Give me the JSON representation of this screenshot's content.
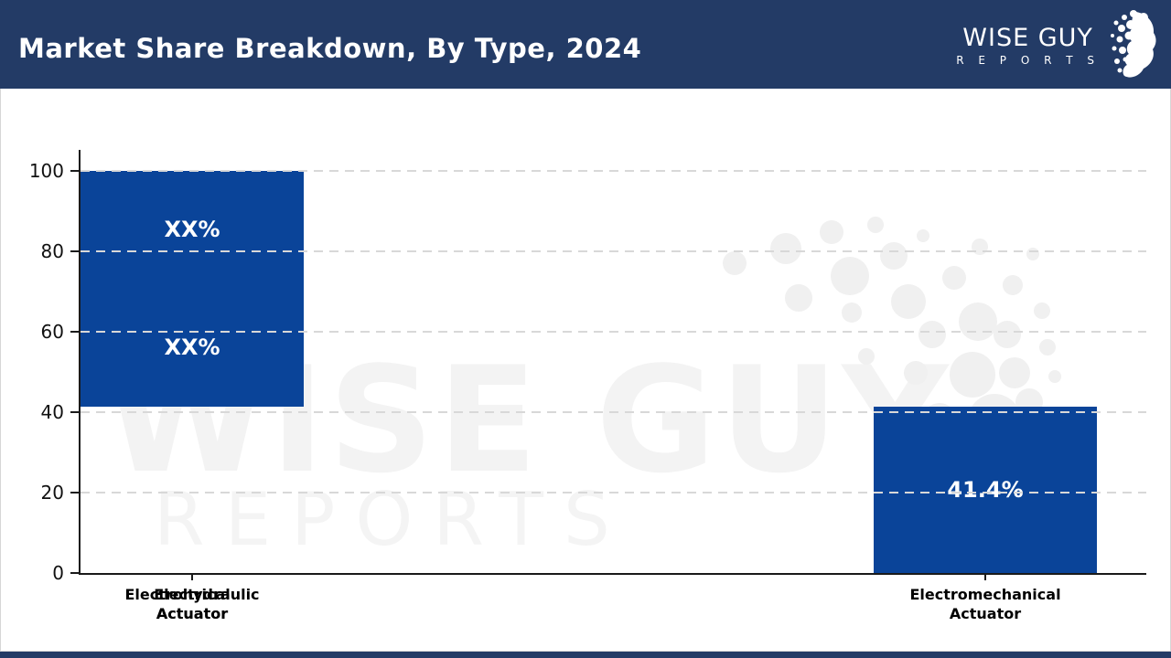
{
  "header": {
    "title": "Market Share Breakdown, By Type, 2024",
    "logo": {
      "line1": "WISE GUY",
      "line2": "R E P O R T S"
    }
  },
  "watermark": {
    "line1": "WISE GUY",
    "line2": "REPORTS"
  },
  "chart_data": {
    "type": "bar",
    "variant": "stacked-waterfall-segments",
    "title": "Market Share Breakdown, By Type, 2024",
    "categories": [
      "Electromechanical Actuator",
      "Electrohydraulic Actuator",
      "Electrical Actuator"
    ],
    "bars": [
      {
        "category": "Electromechanical Actuator",
        "cat_line1": "Electromechanical",
        "cat_line2": "Actuator",
        "label": "41.4%",
        "start": 0,
        "end": 41.4
      },
      {
        "category": "Electrohydraulic Actuator",
        "cat_line1": "Electrohydraulic",
        "cat_line2": "Actuator",
        "label": "XX%",
        "start": 41.4,
        "end": 70.9
      },
      {
        "category": "Electrical Actuator",
        "cat_line1": "Electrical",
        "cat_line2": "Actuator",
        "label": "XX%",
        "start": 70.9,
        "end": 100
      }
    ],
    "ylim": [
      0,
      100
    ],
    "yticks": [
      0,
      20,
      40,
      60,
      80,
      100
    ],
    "xlabel": "",
    "ylabel": "",
    "grid": "horizontal-dashed",
    "legend": "none",
    "colors": {
      "bar": "#0a4499",
      "header": "#233b66",
      "grid": "#d8d8d8",
      "bar_label": "#ffffff",
      "axis_text": "#111111"
    }
  }
}
